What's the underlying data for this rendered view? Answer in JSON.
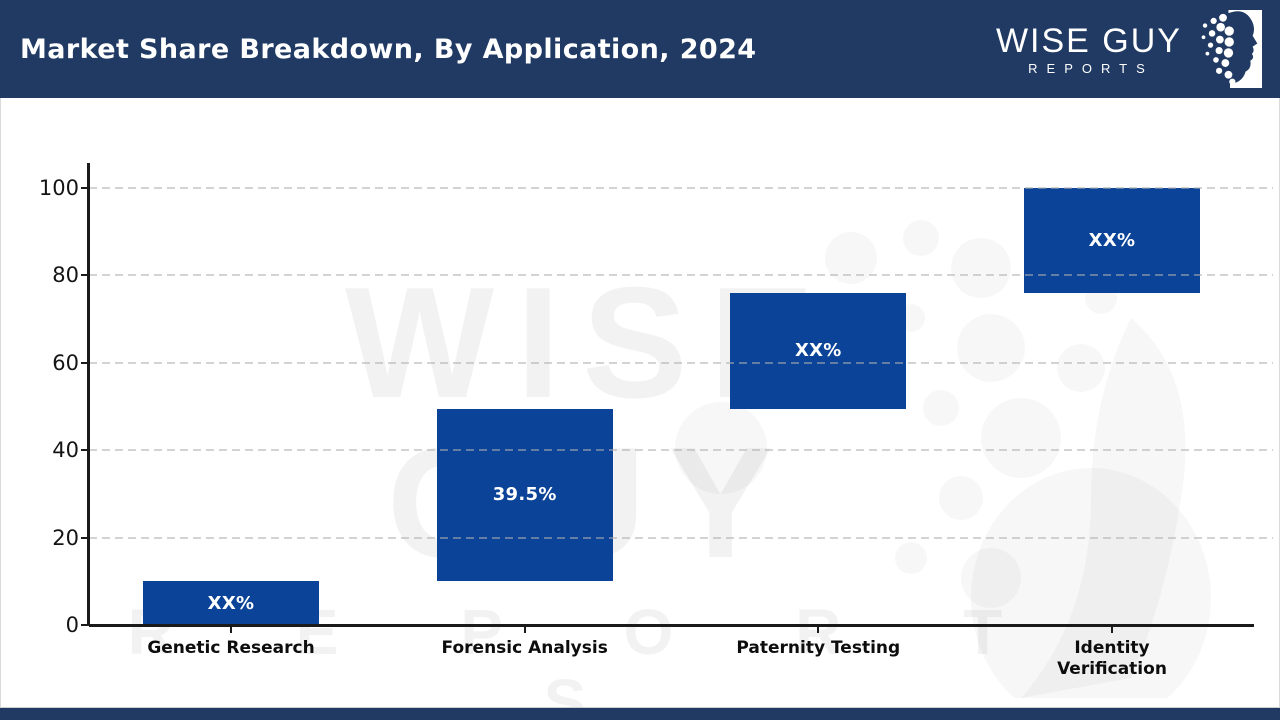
{
  "header": {
    "title": "Market Share Breakdown, By Application, 2024",
    "logo_line1": "WISE GUY",
    "logo_line2": "REPORTS"
  },
  "watermark": {
    "line1": "WISE GUY",
    "line2": "R E P O R T S"
  },
  "colors": {
    "navy": "#203a64",
    "bar_blue": "#0a4397",
    "axis": "#1a1a1a",
    "grid": "#c9c9c9"
  },
  "chart_data": {
    "type": "bar",
    "subtype": "floating-waterfall",
    "title": "Market Share Breakdown, By Application, 2024",
    "categories": [
      "Genetic Research",
      "Forensic Analysis",
      "Paternity Testing",
      "Identity Verification"
    ],
    "bars": [
      {
        "category": "Genetic Research",
        "start": 0,
        "end": 10,
        "value": 10,
        "label": "XX%"
      },
      {
        "category": "Forensic Analysis",
        "start": 10,
        "end": 49.5,
        "value": 39.5,
        "label": "39.5%"
      },
      {
        "category": "Paternity Testing",
        "start": 49.5,
        "end": 76,
        "value": 26.5,
        "label": "XX%"
      },
      {
        "category": "Identity Verification",
        "start": 76,
        "end": 100,
        "value": 24,
        "label": "XX%"
      }
    ],
    "yticks": [
      0,
      20,
      40,
      60,
      80,
      100
    ],
    "ylim": [
      0,
      105.5
    ],
    "xlabel": "",
    "ylabel": "",
    "grid": "horizontal-dashed",
    "legend": "none",
    "bar_color": "#0a4397"
  }
}
